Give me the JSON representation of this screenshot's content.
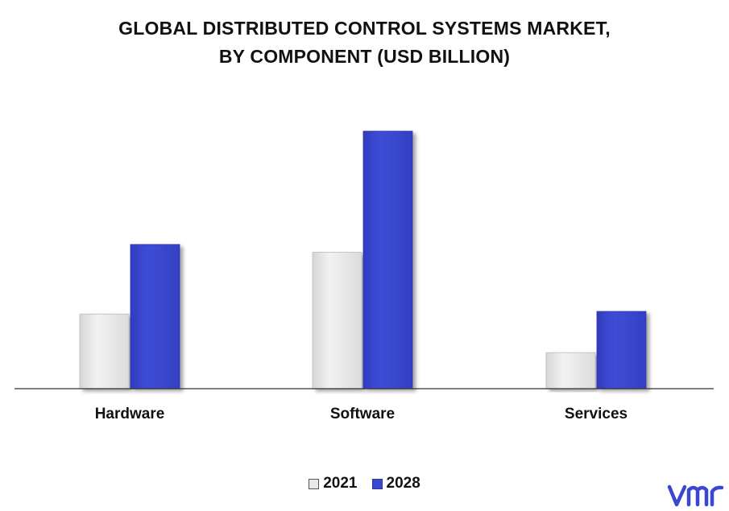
{
  "chart_data": {
    "type": "bar",
    "title": [
      "GLOBAL DISTRIBUTED CONTROL SYSTEMS MARKET,",
      "BY COMPONENT (USD BILLION)"
    ],
    "categories": [
      "Hardware",
      "Software",
      "Services"
    ],
    "series": [
      {
        "name": "2021",
        "values": [
          2.9,
          5.3,
          1.4
        ],
        "color": "#e8e8e8",
        "edge": "#bdbdbd"
      },
      {
        "name": "2028",
        "values": [
          5.6,
          10.0,
          3.0
        ],
        "color": "#3a48d0",
        "edge": "#2a36a8"
      }
    ],
    "ylim": [
      0,
      10.0
    ],
    "grid": false,
    "legend": "bottom-center",
    "xlabel": "",
    "ylabel": ""
  },
  "brand": {
    "logo": "vmr",
    "color": "#3a48d0"
  }
}
